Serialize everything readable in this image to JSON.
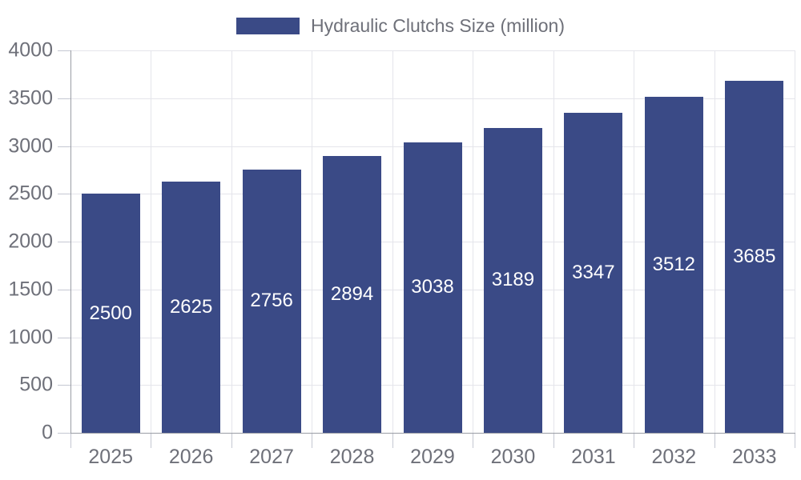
{
  "legend": {
    "label": "Hydraulic Clutchs Size (million)"
  },
  "chart_data": {
    "type": "bar",
    "title": "",
    "categories": [
      "2025",
      "2026",
      "2027",
      "2028",
      "2029",
      "2030",
      "2031",
      "2032",
      "2033"
    ],
    "series": [
      {
        "name": "Hydraulic Clutchs Size (million)",
        "values": [
          2500,
          2625,
          2756,
          2894,
          3038,
          3189,
          3347,
          3512,
          3685
        ]
      }
    ],
    "bar_value_labels": [
      "2500",
      "2625",
      "2756",
      "2894",
      "3038",
      "3189",
      "3347",
      "3512",
      "3685"
    ],
    "bar_labels_position": "inside-center",
    "xlabel": "",
    "ylabel": "",
    "ylim": [
      0,
      4000
    ],
    "ytick_interval": 500,
    "ytick_labels": [
      "0",
      "500",
      "1000",
      "1500",
      "2000",
      "2500",
      "3000",
      "3500",
      "4000"
    ],
    "grid": true,
    "legend_position": "top-center"
  },
  "colors": {
    "bar": "#3a4a86",
    "bar_label": "#ffffff",
    "axis_text": "#6e7079",
    "grid_line": "#e4e5eb",
    "axis_line": "#9a9da5",
    "tick_line": "#c4c7d2",
    "background": "#ffffff"
  }
}
